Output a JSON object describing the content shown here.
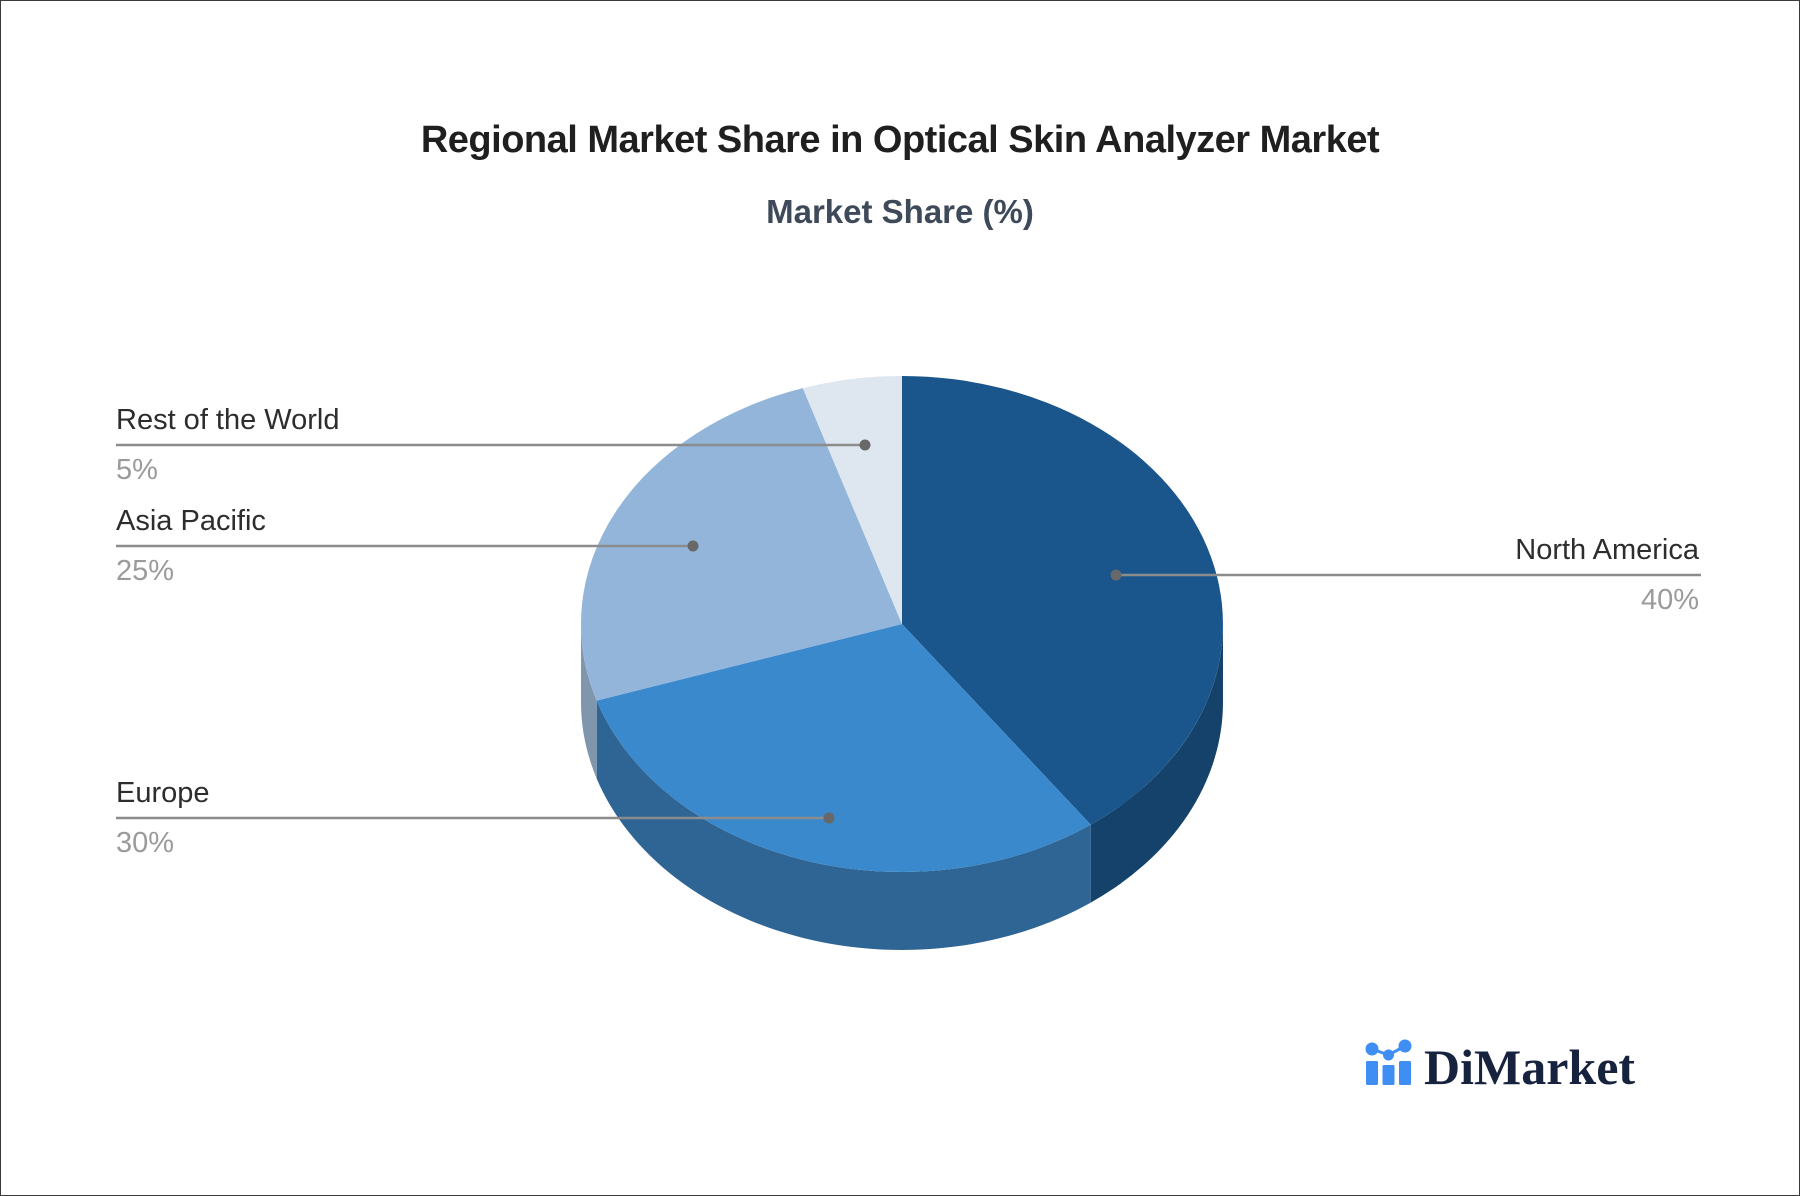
{
  "chart_data": {
    "type": "pie",
    "style": "3d",
    "title": "Regional Market Share in Optical Skin Analyzer Market",
    "subtitle": "Market Share (%)",
    "unit": "%",
    "direction": "clockwise",
    "start_angle_deg": 0,
    "slices": [
      {
        "label": "North America",
        "value": 40,
        "display_value": "40%",
        "color": "#1a568c",
        "side_color": "#15426a"
      },
      {
        "label": "Europe",
        "value": 30,
        "display_value": "30%",
        "color": "#3a89cc",
        "side_color": "#2f6594"
      },
      {
        "label": "Asia Pacific",
        "value": 25,
        "display_value": "25%",
        "color": "#93b5da",
        "side_color": "#8096ad"
      },
      {
        "label": "Rest of the World",
        "value": 5,
        "display_value": "5%",
        "color": "#dee6f0",
        "side_color": "#c3cfdd"
      }
    ],
    "legend_position": "callout-labels",
    "grid": "off"
  },
  "colors": {
    "title_text": "#1f1f1f",
    "subtitle_text": "#3e4a59",
    "label_text": "#2d2d2d",
    "value_text": "#9b9b9b",
    "leader_line": "#8c8c8c",
    "leader_dot": "#686868",
    "background": "#ffffff"
  },
  "branding": {
    "logo_text": "DiMarket",
    "logo_icon": "bar-line-chart-icon",
    "logo_text_color": "#17233e",
    "logo_icon_color": "#3f8ef3"
  }
}
